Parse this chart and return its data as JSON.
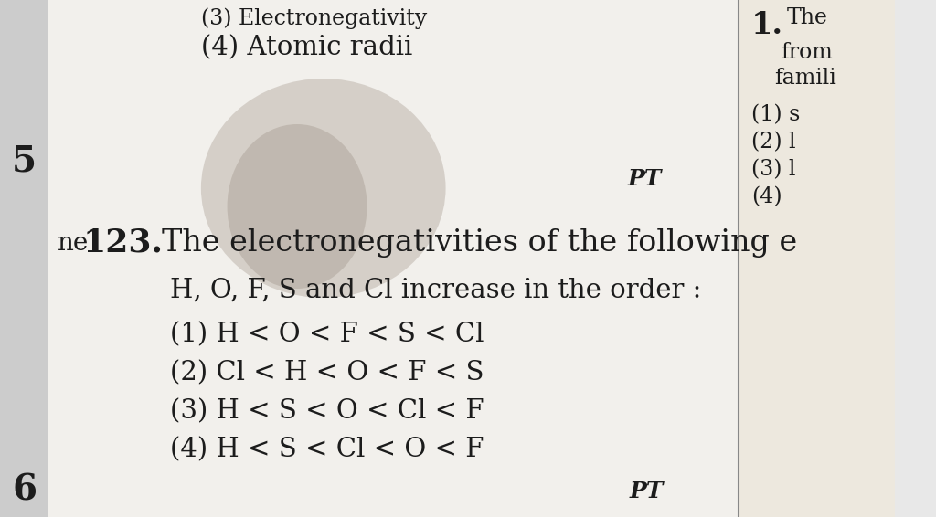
{
  "page_bg": "#e8e8e8",
  "left_strip_color": "#d0d0d0",
  "shadow_color": "#a09080",
  "right_panel_bg": "#f0ece4",
  "question_number": "123.",
  "question_text": "The electronegativities of the following e",
  "sub_text": "H, O, F, S and Cl increase in the order :",
  "option1": "(1) H < O < F < S < Cl",
  "option2": "(2) Cl < H < O < F < S",
  "option3": "(3) H < S < O < Cl < F",
  "option4": "(4) H < S < Cl < O < F",
  "top_left_above": "(3) Electronegativity",
  "top_left_text": "(4) Atomic radii",
  "left_number_top": "5",
  "left_number_bottom": "6",
  "right_header": "1.",
  "right_text1": "from",
  "right_text2": "famili",
  "right_options": [
    "(1) s",
    "(2) l",
    "(3) l",
    "(4)"
  ],
  "pt_label": "PT",
  "pt_bottom": "PT",
  "text_color": "#1c1c1c",
  "font_size_large": 24,
  "font_size_medium": 20,
  "font_size_small": 17,
  "font_size_tiny": 15
}
